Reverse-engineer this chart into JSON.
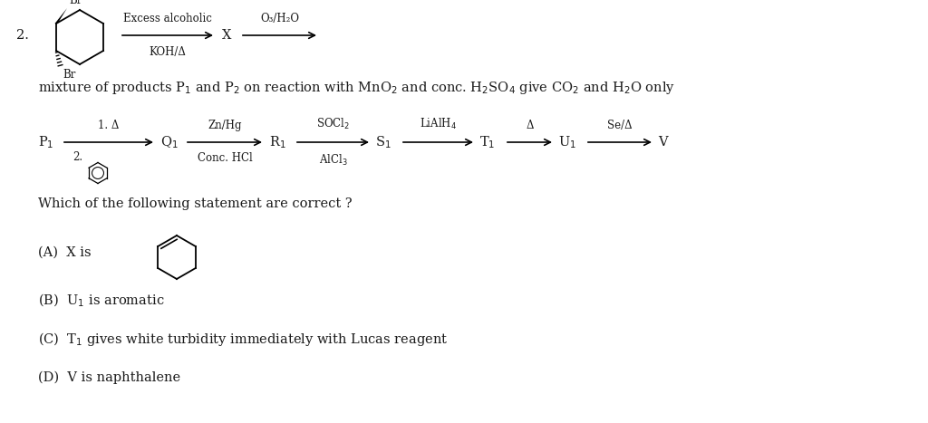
{
  "bg_color": "#ffffff",
  "text_color": "#1a1a1a",
  "question_number": "2.",
  "reaction_above": "Excess alcoholic",
  "reaction_below": "KOH/Δ",
  "reaction_x_label": "O₃/H₂O",
  "mixture_text": "mixture of products P$_1$ and P$_2$ on reaction with MnO$_2$ and conc. H$_2$SO$_4$ give CO$_2$ and H$_2$O only",
  "step1_above": "1. Δ",
  "step1_below": "2.",
  "step2_above": "Zn/Hg",
  "step2_below": "Conc. HCl",
  "step3_above": "SOCl$_2$",
  "step3_below": "AlCl$_3$",
  "step4_above": "LiAlH$_4$",
  "step5_above": "Δ",
  "step6_above": "Se/Δ",
  "which_text": "Which of the following statement are correct ?",
  "optA_text": "(A)  X is",
  "optB_text": "(B)  U$_1$ is aromatic",
  "optC_text": "(C)  T$_1$ gives white turbidity immediately with Lucas reagent",
  "optD_text": "(D)  V is naphthalene",
  "fig_width": 10.24,
  "fig_height": 4.67,
  "dpi": 100
}
